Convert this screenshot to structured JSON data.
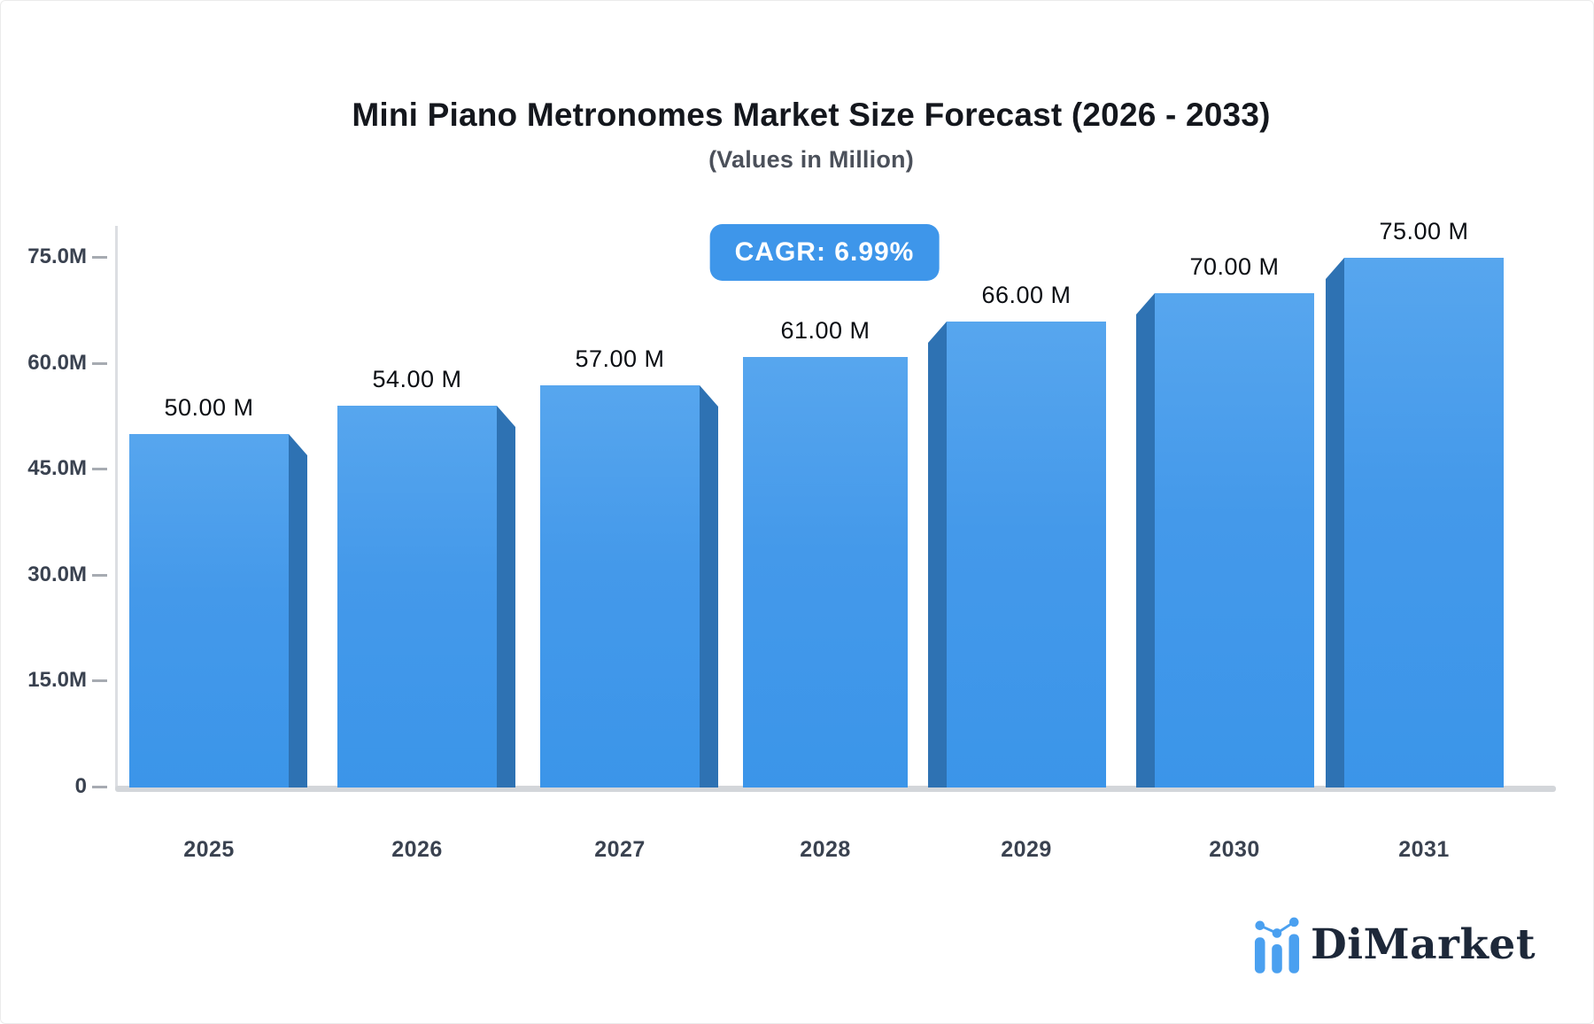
{
  "header": {
    "title": "Mini Piano Metronomes Market Size Forecast (2026 - 2033)",
    "subtitle": "(Values in Million)"
  },
  "badge": {
    "label": "CAGR: 6.99%"
  },
  "brand": {
    "name": "DiMarket"
  },
  "colors": {
    "bar_face_top": "#57a6ee",
    "bar_face_bottom": "#3b95e9",
    "bar_side": "#2e72b3",
    "badge_blue": "#3e96ea",
    "axis_gray": "#d3d6da",
    "label_dark": "#3a4250",
    "logo_blue": "#4aa0f0",
    "logo_navy": "#1d2839"
  },
  "chart_data": {
    "type": "bar",
    "title": "Mini Piano Metronomes Market Size Forecast (2026 - 2033)",
    "subtitle": "(Values in Million)",
    "unit": "Million",
    "categories": [
      "2025",
      "2026",
      "2027",
      "2028",
      "2029",
      "2030",
      "2031"
    ],
    "values": [
      50,
      54,
      57,
      61,
      66,
      70,
      75
    ],
    "data_labels": [
      "50.00 M",
      "54.00 M",
      "57.00 M",
      "61.00 M",
      "66.00 M",
      "70.00 M",
      "75.00 M"
    ],
    "xlabel": "",
    "ylabel": "",
    "ylim": [
      0,
      75
    ],
    "grid": false,
    "legend": false,
    "y_ticks": [
      {
        "label": "75.0M",
        "value": 75
      },
      {
        "label": "60.0M",
        "value": 60
      },
      {
        "label": "45.0M",
        "value": 45
      },
      {
        "label": "30.0M",
        "value": 30
      },
      {
        "label": "15.0M",
        "value": 15
      },
      {
        "label": "0",
        "value": 0
      }
    ],
    "annotations": [
      "CAGR: 6.99%"
    ]
  }
}
